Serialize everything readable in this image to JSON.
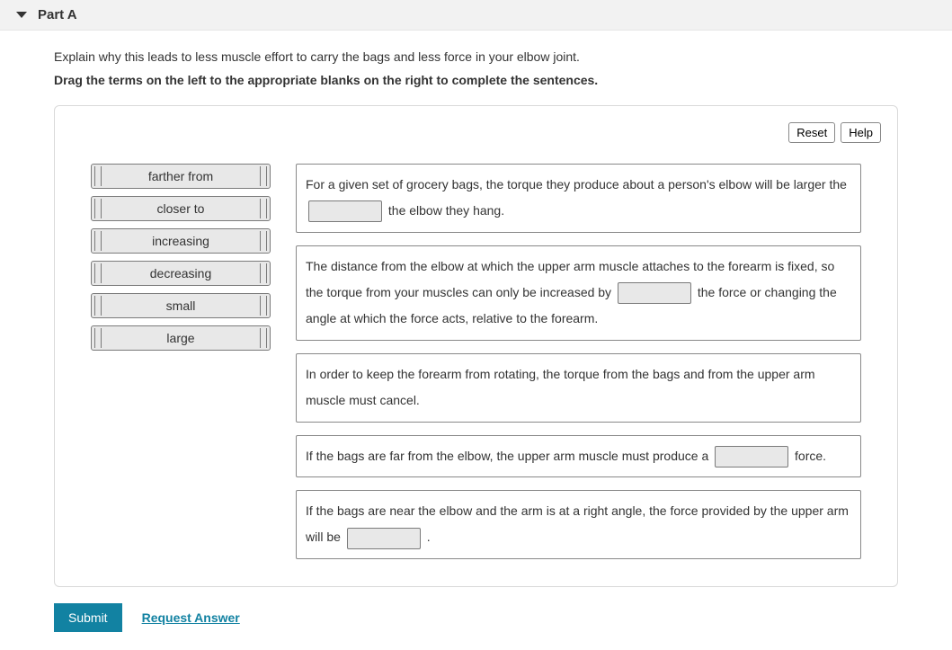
{
  "header": {
    "part_label": "Part A"
  },
  "instructions": {
    "line1": "Explain why this leads to less muscle effort to carry the bags and less force in your elbow joint.",
    "line2": "Drag the terms on the left to the appropriate blanks on the right to complete the sentences."
  },
  "buttons": {
    "reset": "Reset",
    "help": "Help",
    "submit": "Submit",
    "request_answer": "Request Answer"
  },
  "terms": [
    "farther from",
    "closer to",
    "increasing",
    "decreasing",
    "small",
    "large"
  ],
  "sentences": {
    "s1a": "For a given set of grocery bags, the torque they produce about a person's elbow will be larger the ",
    "s1b": " the elbow they hang.",
    "s2a": "The distance from the elbow at which the upper arm muscle attaches to the forearm is fixed, so the torque from your muscles can only be increased by ",
    "s2b": " the force or changing the angle at which the force acts, relative to the forearm.",
    "s3": "In order to keep the forearm from rotating, the torque from the bags and from the upper arm muscle must cancel.",
    "s4a": "If the bags are far from the elbow, the upper arm muscle must produce a ",
    "s4b": " force.",
    "s5a": "If the bags are near the elbow and the arm is at a right angle, the force provided by the upper arm will be ",
    "s5b": " ."
  },
  "colors": {
    "header_bg": "#f2f2f2",
    "panel_border": "#d9d9d9",
    "term_bg": "#e8e8e8",
    "term_border": "#7a7a7a",
    "submit_bg": "#1282a2",
    "link_color": "#1282a2"
  }
}
